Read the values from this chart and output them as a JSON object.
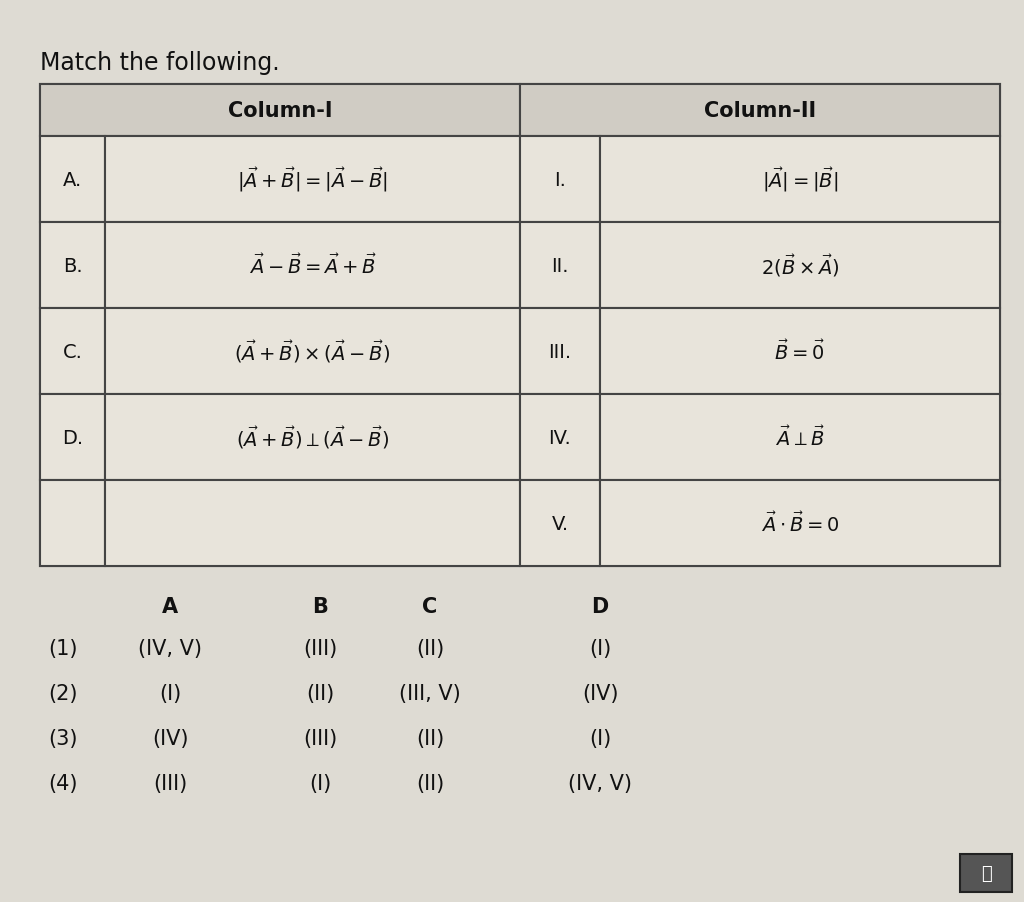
{
  "title": "Match the following.",
  "col1_header": "Column-I",
  "col2_header": "Column-II",
  "col1_labels": [
    "A.",
    "B.",
    "C.",
    "D.",
    ""
  ],
  "col1_contents": [
    "$|\\vec{A}+\\vec{B}|=|\\vec{A}-\\vec{B}|$",
    "$\\vec{A}-\\vec{B}=\\vec{A}+\\vec{B}$",
    "$(\\vec{A}+\\vec{B})\\times(\\vec{A}-\\vec{B})$",
    "$(\\vec{A}+\\vec{B})\\perp(\\vec{A}-\\vec{B})$",
    ""
  ],
  "col2_labels": [
    "I.",
    "II.",
    "III.",
    "IV.",
    "V."
  ],
  "col2_contents": [
    "$|\\vec{A}|=|\\vec{B}|$",
    "$2(\\vec{B}\\times\\vec{A})$",
    "$\\vec{B}=\\vec{0}$",
    "$\\vec{A}\\perp\\vec{B}$",
    "$\\vec{A}\\cdot\\vec{B}=0$"
  ],
  "ans_header": [
    "A",
    "B",
    "C",
    "D"
  ],
  "ans_rows": [
    [
      "(1)",
      "(IV, V)",
      "(III)",
      "(II)",
      "(I)"
    ],
    [
      "(2)",
      "(I)",
      "(II)",
      "(III, V)",
      "(IV)"
    ],
    [
      "(3)",
      "(IV)",
      "(III)",
      "(II)",
      "(I)"
    ],
    [
      "(4)",
      "(III)",
      "(I)",
      "(II)",
      "(IV, V)"
    ]
  ],
  "bg_color": "#dedbd3",
  "table_bg": "#e8e4db",
  "header_bg": "#d0ccc4",
  "border_color": "#444444",
  "text_color": "#111111",
  "title_fontsize": 17,
  "header_fontsize": 15,
  "cell_fontsize": 14,
  "answer_fontsize": 15,
  "icon_color": "#555555"
}
